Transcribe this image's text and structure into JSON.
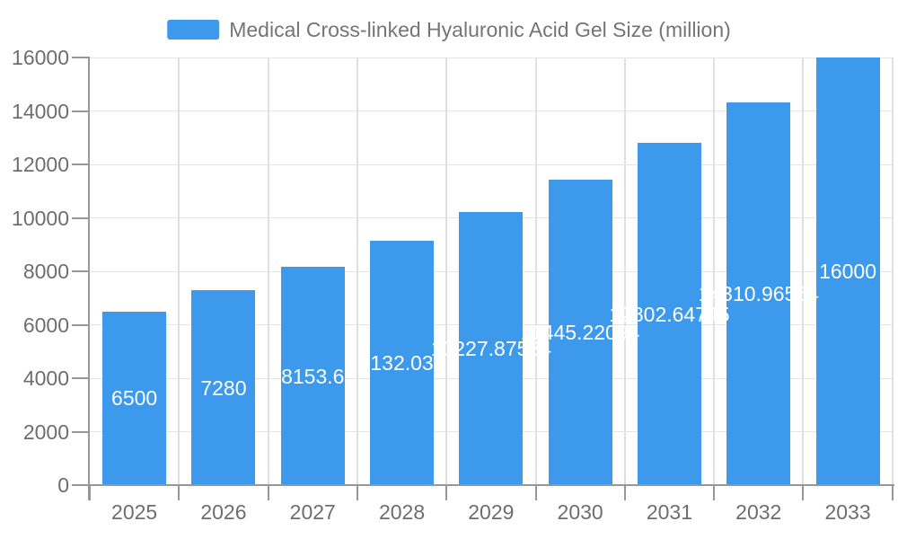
{
  "legend": {
    "label": "Medical Cross-linked Hyaluronic Acid Gel Size (million)"
  },
  "chart_data": {
    "type": "bar",
    "title": "Medical Cross-linked Hyaluronic Acid Gel Size (million)",
    "categories": [
      "2025",
      "2026",
      "2027",
      "2028",
      "2029",
      "2030",
      "2031",
      "2032",
      "2033"
    ],
    "values": [
      6500,
      7280,
      8153.6,
      9132.032,
      10227.87584,
      11445.22094,
      12802.64745,
      14310.96554,
      16000
    ],
    "value_labels": [
      "6500",
      "7280",
      "8153.6",
      "9132.032",
      "10227.87584",
      "11445.22094",
      "12802.64745",
      "14310.96554",
      "16000"
    ],
    "xlabel": "",
    "ylabel": "",
    "ylim": [
      0,
      16000
    ],
    "yticks": [
      0,
      2000,
      4000,
      6000,
      8000,
      10000,
      12000,
      14000,
      16000
    ],
    "grid": true,
    "legend_position": "top",
    "bar_color": "#3C99EC",
    "value_label_color": "#FFFFFF"
  },
  "colors": {
    "bar": "#3C99EC",
    "axis_line": "#979797",
    "grid_line_h": "#E5E5E5",
    "grid_line_v": "#E0E0E0",
    "tick": "#979797",
    "tick_label": "#6E6E6E",
    "legend_text": "#757575",
    "value_label": "#FFFFFF",
    "background": "#FFFFFF"
  }
}
